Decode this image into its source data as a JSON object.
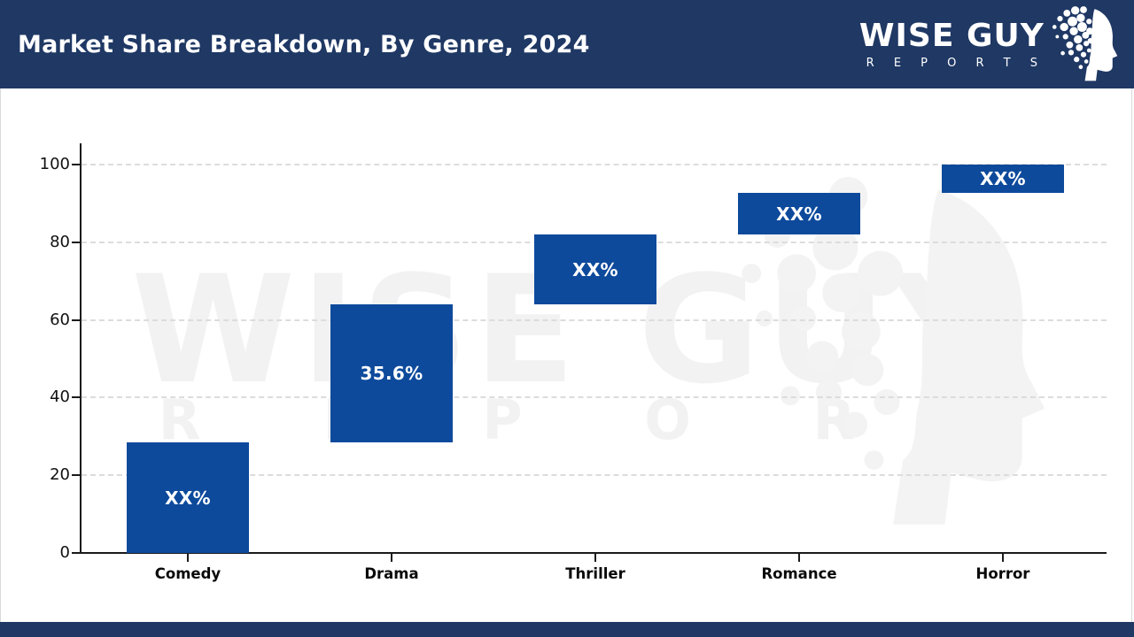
{
  "header": {
    "title": "Market Share Breakdown, By Genre, 2024",
    "logo": {
      "line1": "WISE GUY",
      "line2": "R E P O R T S"
    }
  },
  "watermark": {
    "line1": "WISE GUY",
    "line2": "R E P O R T S"
  },
  "colors": {
    "header_bg": "#1F3864",
    "footer_bg": "#1F3864",
    "bar": "#0D4A9C",
    "bar_label": "#FFFFFF",
    "axis": "#1A1A1A",
    "grid": "#DCDCDC",
    "watermark": "#F2F2F2"
  },
  "chart_data": {
    "type": "bar",
    "subtype": "waterfall",
    "title": "Market Share Breakdown, By Genre, 2024",
    "categories": [
      "Comedy",
      "Drama",
      "Thriller",
      "Romance",
      "Horror"
    ],
    "bars": [
      {
        "category": "Comedy",
        "start": 0,
        "end": 28.4,
        "label": "XX%"
      },
      {
        "category": "Drama",
        "start": 28.4,
        "end": 64.0,
        "label": "35.6%"
      },
      {
        "category": "Thriller",
        "start": 64.0,
        "end": 82.0,
        "label": "XX%"
      },
      {
        "category": "Romance",
        "start": 82.0,
        "end": 92.6,
        "label": "XX%"
      },
      {
        "category": "Horror",
        "start": 92.6,
        "end": 100.0,
        "label": "XX%"
      }
    ],
    "xlabel": "",
    "ylabel": "",
    "ylim": [
      0,
      100
    ],
    "yticks": [
      0,
      20,
      40,
      60,
      80,
      100
    ],
    "grid": "horizontal-dashed",
    "legend": "none"
  }
}
